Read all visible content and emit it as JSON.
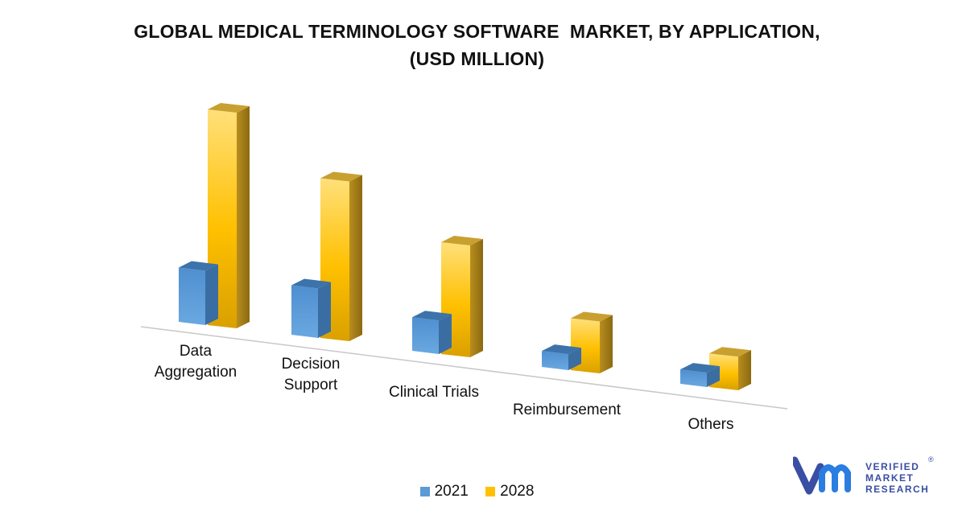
{
  "chart_data": {
    "type": "bar",
    "title_lines": [
      "GLOBAL MEDICAL TERMINOLOGY SOFTWARE  MARKET, BY APPLICATION,",
      "(USD MILLION)"
    ],
    "categories": [
      [
        "Data",
        "Aggregation"
      ],
      [
        "Decision",
        "Support"
      ],
      [
        "Clinical Trials"
      ],
      [
        "Reimbursement"
      ],
      [
        "Others"
      ]
    ],
    "series": [
      {
        "name": "2021",
        "color": "#5b9bd5",
        "values": [
          68,
          62,
          42,
          20,
          18
        ]
      },
      {
        "name": "2028",
        "color": "#ffc000",
        "values": [
          270,
          200,
          140,
          65,
          42
        ]
      }
    ],
    "style": "3d-clustered-column",
    "legend_position": "bottom",
    "grid": false
  },
  "logo": {
    "mark": "vmr-logo-icon",
    "lines": [
      "VERIFIED",
      "MARKET",
      "RESEARCH"
    ],
    "registered": "®",
    "color": "#3a4ea3"
  }
}
